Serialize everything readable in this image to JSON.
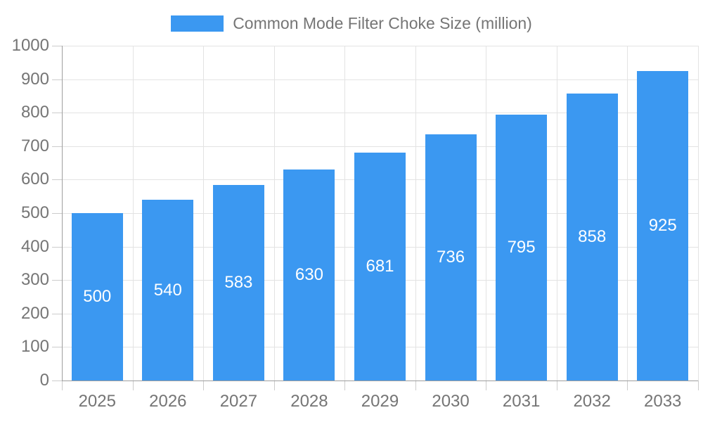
{
  "chart_data": {
    "type": "bar",
    "title": "",
    "categories": [
      "2025",
      "2026",
      "2027",
      "2028",
      "2029",
      "2030",
      "2031",
      "2032",
      "2033"
    ],
    "series": [
      {
        "name": "Common Mode Filter Choke Size (million)",
        "values": [
          500,
          540,
          583,
          630,
          681,
          736,
          795,
          858,
          925
        ]
      }
    ],
    "value_labels_shown": true,
    "value_label_position": "inside-center",
    "xlabel": "",
    "ylabel": "",
    "ylim": [
      0,
      1000
    ],
    "yticks": [
      0,
      100,
      200,
      300,
      400,
      500,
      600,
      700,
      800,
      900,
      1000
    ],
    "grid": true,
    "legend_position": "top"
  },
  "colors": {
    "bar": "#3b98f1",
    "axis_text": "#757575",
    "bar_value_text": "#ffffff",
    "grid_line": "#e3e3e3",
    "axis_line": "#9e9e9e",
    "tick_line": "#cccccc",
    "background": "#ffffff"
  }
}
